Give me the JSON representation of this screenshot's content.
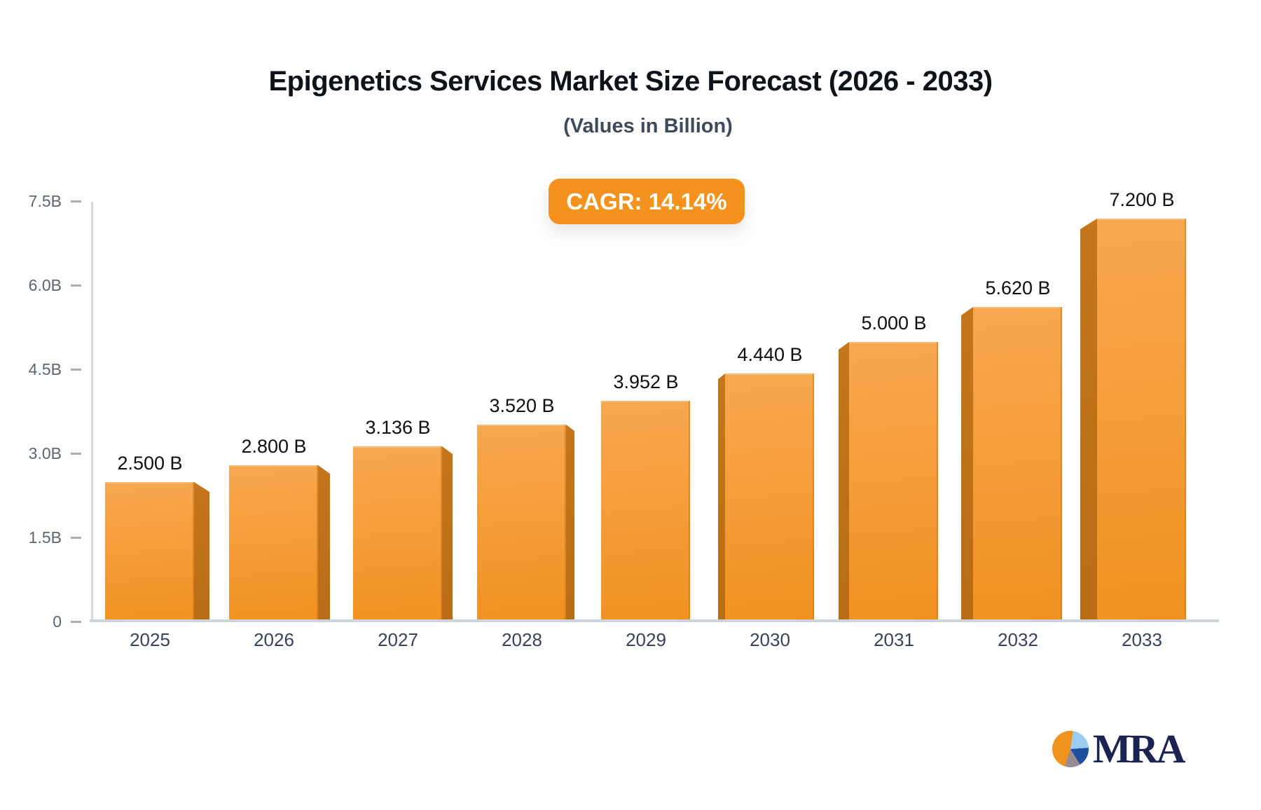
{
  "title": "Epigenetics Services Market Size Forecast (2026 - 2033)",
  "subtitle": "(Values in Billion)",
  "badge": {
    "label": "CAGR: 14.14%",
    "bg_color": "#F5921E",
    "text_color": "#FFFFFF"
  },
  "chart_data": {
    "type": "bar",
    "title": "Epigenetics Services Market Size Forecast (2026 - 2033)",
    "subtitle": "(Values in Billion)",
    "xlabel": "",
    "ylabel": "",
    "unit": "Billion",
    "categories": [
      "2025",
      "2026",
      "2027",
      "2028",
      "2029",
      "2030",
      "2031",
      "2032",
      "2033"
    ],
    "values": [
      2.5,
      2.8,
      3.136,
      3.52,
      3.952,
      4.44,
      5.0,
      5.62,
      7.2
    ],
    "value_labels": [
      "2.500 B",
      "2.800 B",
      "3.136 B",
      "3.520 B",
      "3.952 B",
      "4.440 B",
      "5.000 B",
      "5.620 B",
      "7.200 B"
    ],
    "ylim": [
      0,
      7.5
    ],
    "yticks": [
      {
        "value": 7.5,
        "label": "7.5B"
      },
      {
        "value": 6.0,
        "label": "6.0B"
      },
      {
        "value": 4.5,
        "label": "4.5B"
      },
      {
        "value": 3.0,
        "label": "3.0B"
      },
      {
        "value": 1.5,
        "label": "1.5B"
      },
      {
        "value": 0,
        "label": "0"
      }
    ],
    "grid": false,
    "legend": "none",
    "bar_style": {
      "front_top_color": "#F8A851",
      "front_bottom_color": "#F19120",
      "side_top_color": "#C5761B",
      "side_bottom_color": "#B96C14"
    }
  },
  "logo": {
    "text": "MRA",
    "text_color": "#1b2450",
    "pie_orange": "#F0921E",
    "pie_light_blue": "#9CCBF0",
    "pie_blue": "#1D4F9F",
    "pie_gray": "#978D92"
  }
}
